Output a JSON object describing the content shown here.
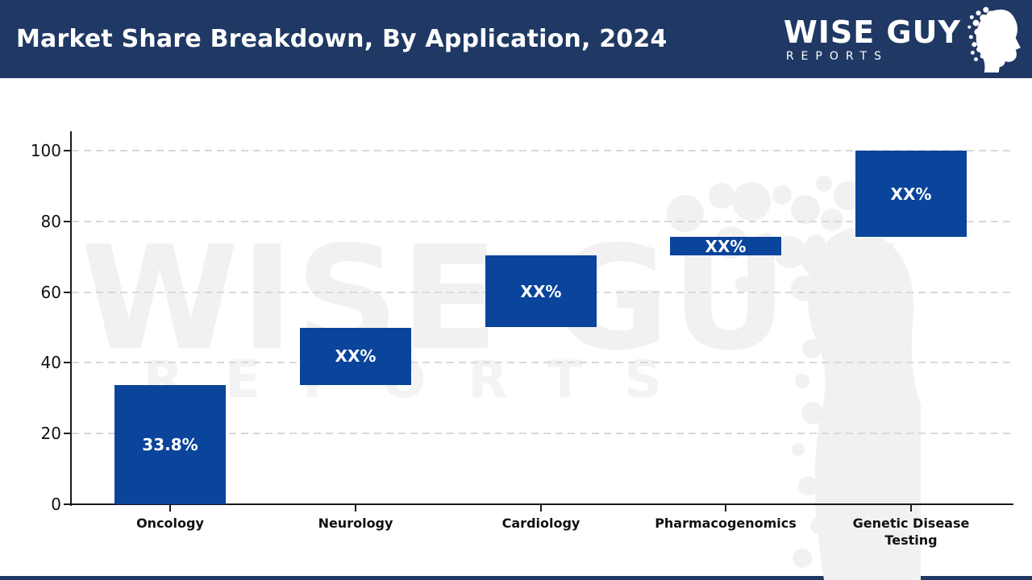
{
  "header": {
    "title": "Market Share Breakdown, By Application, 2024",
    "logo": {
      "line1": "WISE GUY",
      "line2": "REPORTS"
    }
  },
  "watermark": {
    "line1": "WISE GUY",
    "line2": "REPORTS"
  },
  "colors": {
    "header_bg": "#1F3864",
    "footer_bg": "#1F3864",
    "bar": "#0A449B",
    "bar_label": "#ffffff",
    "gridline": "#d9d9d9",
    "axis": "#1a1a1a",
    "watermark": "#f1f1f1"
  },
  "chart_data": {
    "type": "bar",
    "subtype": "waterfall",
    "title": "Market Share Breakdown, By Application, 2024",
    "xlabel": "",
    "ylabel": "",
    "ylim": [
      0,
      105
    ],
    "yticks": [
      0,
      20,
      40,
      60,
      80,
      100
    ],
    "grid": "horizontal-dashed",
    "legend": "none",
    "categories": [
      "Oncology",
      "Neurology",
      "Cardiology",
      "Pharmacogenomics",
      "Genetic Disease Testing"
    ],
    "segments": [
      {
        "category": "Oncology",
        "start": 0,
        "end": 33.8,
        "label": "33.8%"
      },
      {
        "category": "Neurology",
        "start": 33.8,
        "end": 50,
        "label": "XX%"
      },
      {
        "category": "Cardiology",
        "start": 50,
        "end": 70.3,
        "label": "XX%"
      },
      {
        "category": "Pharmacogenomics",
        "start": 70.3,
        "end": 75.6,
        "label": "XX%"
      },
      {
        "category": "Genetic Disease Testing",
        "start": 75.6,
        "end": 100,
        "label": "XX%"
      }
    ]
  }
}
